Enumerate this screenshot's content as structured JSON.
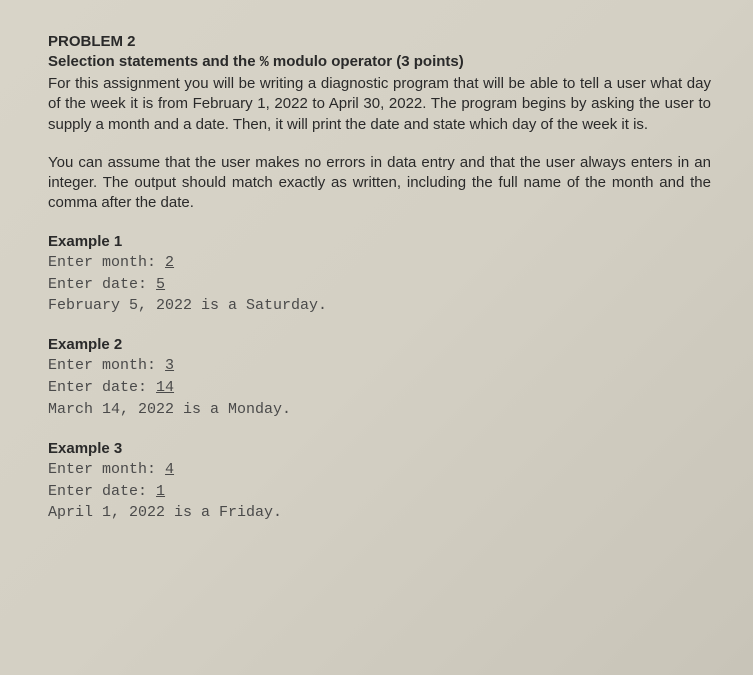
{
  "problem": {
    "title": "PROBLEM 2",
    "subtitle_prefix": "Selection statements and the ",
    "subtitle_op": "%",
    "subtitle_suffix": " modulo operator (3 points)",
    "para1": "For this assignment you will be writing a diagnostic program that will be able to tell a user what day of the week it is from February 1, 2022 to April 30, 2022. The program begins by asking the user to supply a month and a date.  Then, it will print the date and state which day of the week it is.",
    "para2": "You can assume that the user makes no errors in data entry and that the user always enters in an integer. The output should match exactly as written, including the full name of the month and the comma after the date."
  },
  "examples": [
    {
      "title": "Example 1",
      "month_prompt": "Enter month: ",
      "month_value": "2",
      "date_prompt": "Enter date: ",
      "date_value": "5",
      "result": "February 5, 2022 is a Saturday."
    },
    {
      "title": "Example 2",
      "month_prompt": "Enter month: ",
      "month_value": "3",
      "date_prompt": "Enter date: ",
      "date_value": "14",
      "result": "March 14, 2022 is a Monday."
    },
    {
      "title": "Example 3",
      "month_prompt": "Enter month: ",
      "month_value": "4",
      "date_prompt": "Enter date: ",
      "date_value": "1",
      "result": "April 1, 2022 is a Friday."
    }
  ],
  "colors": {
    "text": "#2a2a2a",
    "mono_text": "#4a4a4a",
    "background": "#d4d0c4"
  },
  "fonts": {
    "body_family": "Arial",
    "mono_family": "Courier New",
    "body_size_pt": 11,
    "mono_size_pt": 11
  }
}
